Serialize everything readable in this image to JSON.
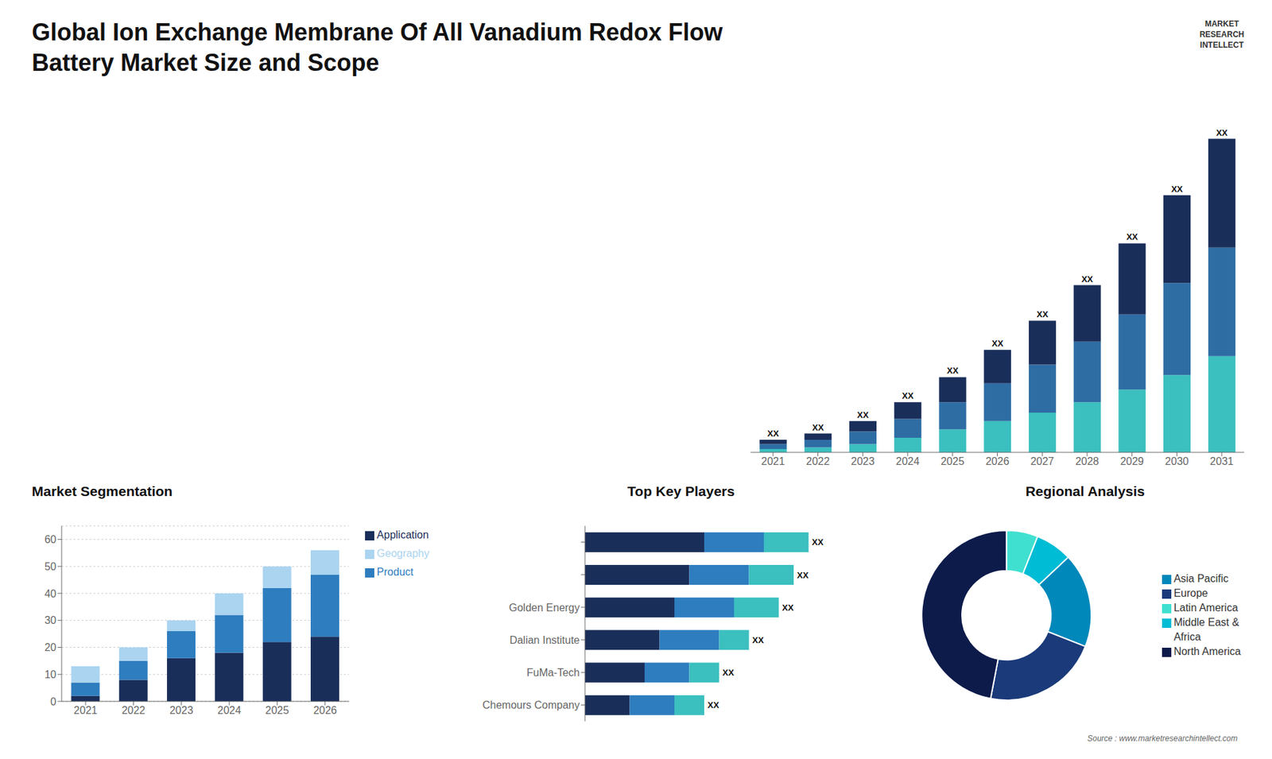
{
  "chart_data": [
    {
      "type": "bar",
      "title": "Global Ion Exchange Membrane Of All Vanadium Redox Flow\nBattery Market Size and Scope",
      "annotations": [
        "MARKET",
        "RESEARCH",
        "INTELLECT",
        "Source : www.marketresearchintellect.com"
      ],
      "stacked": true,
      "categories": [
        "2021",
        "2022",
        "2023",
        "2024",
        "2025",
        "2026",
        "2027",
        "2028",
        "2029",
        "2030",
        "2031"
      ],
      "ylim": [
        0,
        80
      ],
      "tick_labels": "x",
      "series": [
        {
          "color": "#3bbfbf",
          "values": [
            0.8,
            1.2,
            2.0,
            3.5,
            5.5,
            7.5,
            9.5,
            12.0,
            15.0,
            18.5,
            23.0
          ]
        },
        {
          "color": "#2e6da4",
          "values": [
            1.2,
            1.8,
            3.0,
            4.5,
            6.5,
            9.0,
            11.5,
            14.5,
            18.0,
            22.0,
            26.0
          ]
        },
        {
          "color": "#1a2e5a",
          "values": [
            1.0,
            1.5,
            2.5,
            4.0,
            6.0,
            8.0,
            10.5,
            13.5,
            17.0,
            21.0,
            26.0
          ],
          "value_labels": [
            "XX",
            "XX",
            "XX",
            "XX",
            "XX",
            "XX",
            "XX",
            "XX",
            "XX",
            "XX",
            "XX"
          ]
        }
      ]
    },
    {
      "type": "bar",
      "title": "Market Segmentation",
      "stacked": true,
      "categories": [
        "2021",
        "2022",
        "2023",
        "2024",
        "2025",
        "2026"
      ],
      "ylim": [
        0,
        65
      ],
      "yticks": [
        0,
        10,
        20,
        30,
        40,
        50,
        60
      ],
      "grid": true,
      "legend": "right",
      "series": [
        {
          "name": "Application",
          "color": "#1a2e5a",
          "values": [
            2,
            8,
            16,
            18,
            22,
            24
          ]
        },
        {
          "name": "Product",
          "color": "#2e7dbf",
          "values": [
            5,
            7,
            10,
            14,
            20,
            23
          ]
        },
        {
          "name": "Geography",
          "color": "#aad4f0",
          "values": [
            6,
            5,
            4,
            8,
            8,
            9
          ]
        }
      ]
    },
    {
      "type": "bar",
      "title": "Top Key Players",
      "orientation": "horizontal",
      "stacked": true,
      "categories": [
        null,
        null,
        "Golden Energy",
        "Dalian Institute",
        "FuMa-Tech",
        "Chemours Company"
      ],
      "xlim": [
        0,
        18
      ],
      "tick_labels": "y",
      "series": [
        {
          "color": "#1a2e5a",
          "values": [
            8,
            7,
            6,
            5,
            4,
            3
          ]
        },
        {
          "color": "#2e7dbf",
          "values": [
            4,
            4,
            4,
            4,
            3,
            3
          ]
        },
        {
          "color": "#3bbfbf",
          "values": [
            3,
            3,
            3,
            2,
            2,
            2
          ],
          "value_labels": [
            "XX",
            "XX",
            "XX",
            "XX",
            "XX",
            "XX"
          ]
        }
      ]
    },
    {
      "type": "pie",
      "title": "Regional Analysis",
      "categories": [
        "Latin America",
        "Middle East &\nAfrica",
        "Asia Pacific",
        "Europe",
        "North America"
      ],
      "values": [
        6,
        7,
        18,
        22,
        47
      ],
      "colors": [
        "#40e0d0",
        "#00bcd4",
        "#0088bb",
        "#1a3a7a",
        "#0d1b4b"
      ],
      "legend": "right"
    }
  ]
}
